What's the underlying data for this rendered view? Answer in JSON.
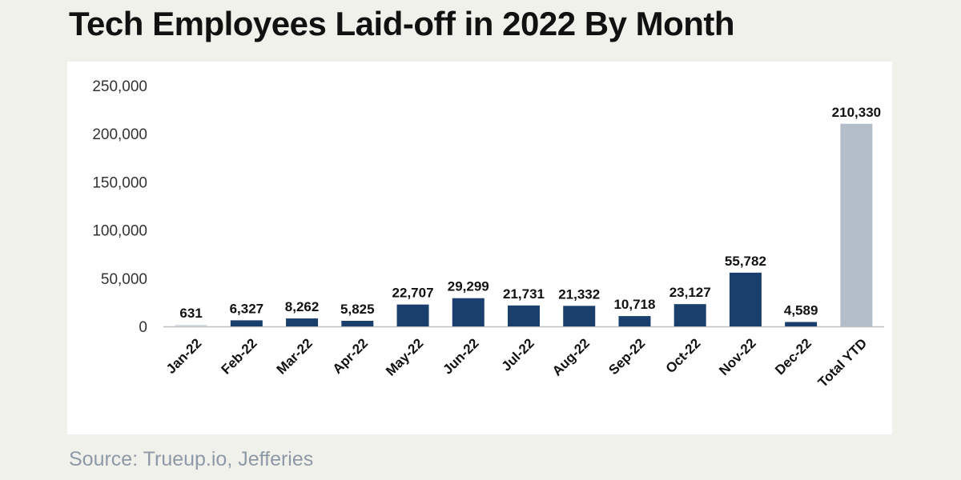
{
  "header": {
    "title": "Tech Employees Laid-off in 2022 By Month"
  },
  "footer": {
    "source": "Source: Trueup.io, Jefferies"
  },
  "colors": {
    "bar": "#1a3f6c",
    "total_bar": "#b4bec9",
    "axis": "#bfbfbf",
    "background": "#f1f1ec",
    "panel": "#ffffff"
  },
  "chart_data": {
    "type": "bar",
    "categories": [
      "Jan-22",
      "Feb-22",
      "Mar-22",
      "Apr-22",
      "May-22",
      "Jun-22",
      "Jul-22",
      "Aug-22",
      "Sep-22",
      "Oct-22",
      "Nov-22",
      "Dec-22",
      "Total YTD"
    ],
    "values": [
      631,
      6327,
      8262,
      5825,
      22707,
      29299,
      21731,
      21332,
      10718,
      23127,
      55782,
      4589,
      210330
    ],
    "value_labels": [
      "631",
      "6,327",
      "8,262",
      "5,825",
      "22,707",
      "29,299",
      "21,731",
      "21,332",
      "10,718",
      "23,127",
      "55,782",
      "4,589",
      "210,330"
    ],
    "yticks": [
      0,
      50000,
      100000,
      150000,
      200000,
      250000
    ],
    "ytick_labels": [
      "0",
      "50,000",
      "100,000",
      "150,000",
      "200,000",
      "250,000"
    ],
    "ylim": [
      0,
      250000
    ],
    "grid": false,
    "legend": "none",
    "highlight_category": "Total YTD"
  }
}
